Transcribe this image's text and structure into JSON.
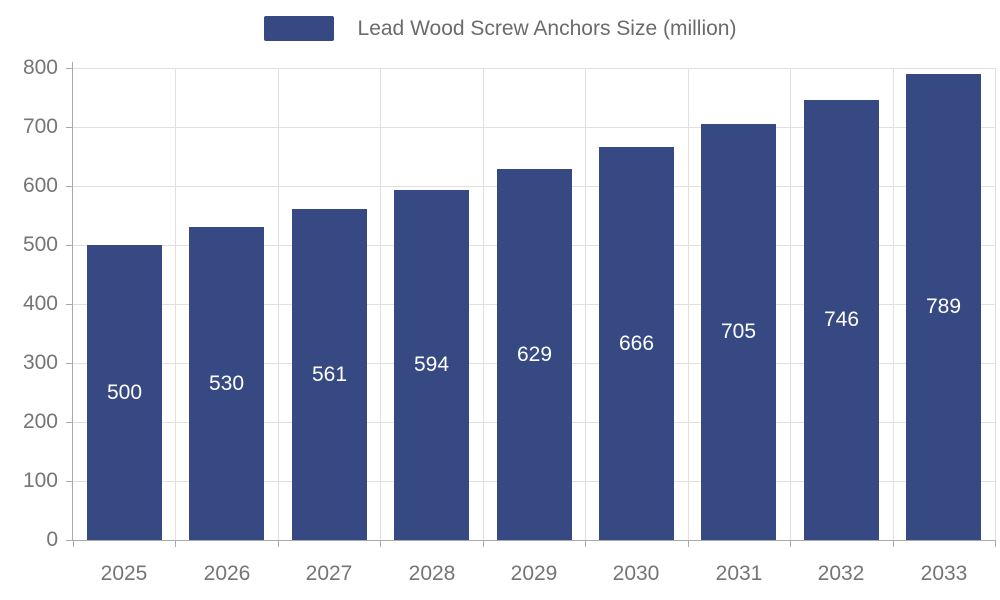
{
  "legend": {
    "label": "Lead Wood Screw Anchors Size (million)"
  },
  "chart_data": {
    "type": "bar",
    "title": "Lead Wood Screw Anchors Size (million)",
    "categories": [
      "2025",
      "2026",
      "2027",
      "2028",
      "2029",
      "2030",
      "2031",
      "2032",
      "2033"
    ],
    "values": [
      500,
      530,
      561,
      594,
      629,
      666,
      705,
      746,
      789
    ],
    "xlabel": "",
    "ylabel": "",
    "ylim": [
      0,
      800
    ],
    "yticks": [
      0,
      100,
      200,
      300,
      400,
      500,
      600,
      700,
      800
    ],
    "grid": true,
    "legend_position": "top-center",
    "value_labels": "inside-center",
    "colors": {
      "bar": "#364983",
      "value_label": "#ffffff",
      "axis_text": "#757575",
      "legend_text": "#6b6b6b",
      "axis_line": "#aaaaaa",
      "gridline": "#e0e0e0",
      "background": "#ffffff"
    }
  }
}
